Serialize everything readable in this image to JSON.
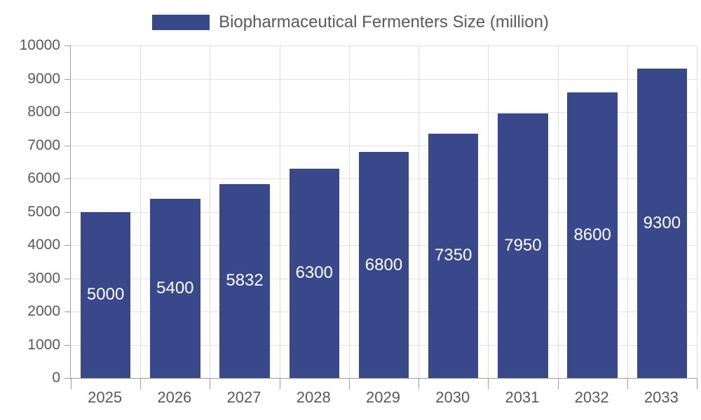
{
  "page": {
    "background": "#ffffff"
  },
  "legend": {
    "label": "Biopharmaceutical Fermenters Size (million)"
  },
  "chart_data": {
    "type": "bar",
    "title": "Biopharmaceutical Fermenters Size (million)",
    "categories": [
      "2025",
      "2026",
      "2027",
      "2028",
      "2029",
      "2030",
      "2031",
      "2032",
      "2033"
    ],
    "values": [
      5000,
      5400,
      5832,
      6300,
      6800,
      7350,
      7950,
      8600,
      9300
    ],
    "xlabel": "",
    "ylabel": "",
    "ylim": [
      0,
      10000
    ],
    "yticks": [
      0,
      1000,
      2000,
      3000,
      4000,
      5000,
      6000,
      7000,
      8000,
      9000,
      10000
    ],
    "grid": true,
    "legend_position": "top",
    "bar_labels_inside": true,
    "colors": {
      "bar": "#38488B",
      "bar_label": "#FFFFFF",
      "axis": "#9E9E9E",
      "grid_h": "#E2E2E2",
      "grid_v": "#DCDCDC",
      "tick": "#9E9E9E",
      "tick_label": "#595959"
    }
  }
}
